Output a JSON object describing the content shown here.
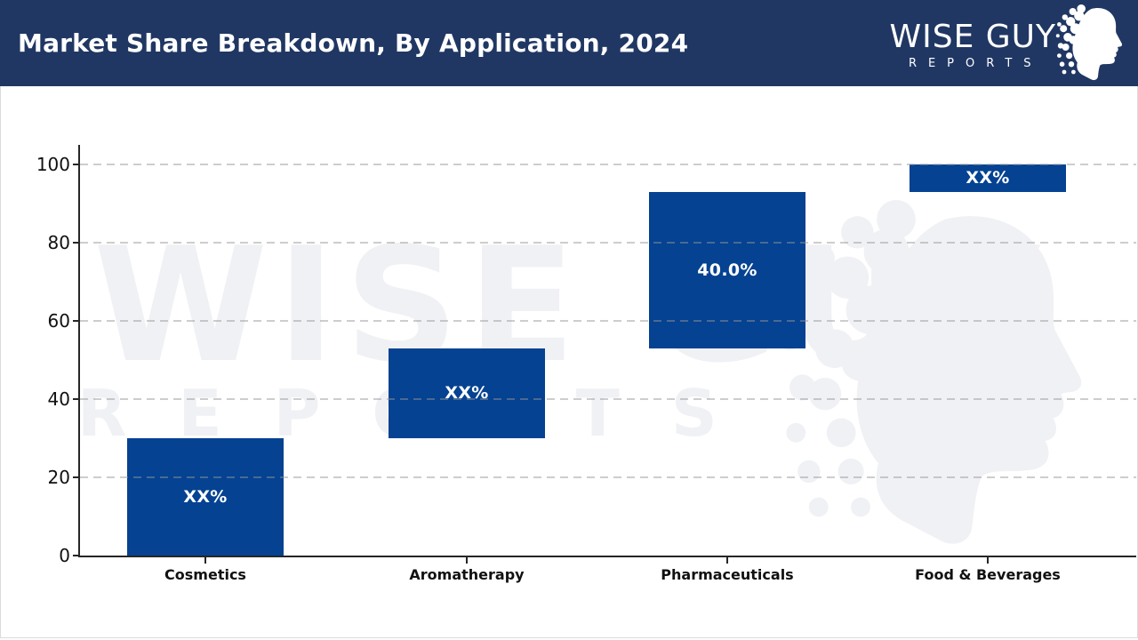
{
  "header": {
    "title": "Market Share Breakdown, By Application, 2024",
    "logo_line1": "WISE GUY",
    "logo_line2": "REPORTS"
  },
  "watermark": {
    "line1": "WISE GUY",
    "line2": "REPORTS"
  },
  "colors": {
    "header_bg": "#203763",
    "bar": "#054291",
    "axis": "#262626",
    "tick_text": "#111111",
    "bar_label_text": "#ffffff",
    "watermark": "#f0f1f4",
    "panel_border": "#dcdcdc"
  },
  "chart_data": {
    "type": "bar",
    "subtype": "waterfall",
    "title": "Market Share Breakdown, By Application, 2024",
    "categories": [
      "Cosmetics",
      "Aromatherapy",
      "Pharmaceuticals",
      "Food & Beverages"
    ],
    "segments": [
      {
        "category": "Cosmetics",
        "start": 0,
        "end": 30,
        "label": "XX%"
      },
      {
        "category": "Aromatherapy",
        "start": 30,
        "end": 53,
        "label": "XX%"
      },
      {
        "category": "Pharmaceuticals",
        "start": 53,
        "end": 93,
        "label": "40.0%"
      },
      {
        "category": "Food & Beverages",
        "start": 93,
        "end": 100,
        "label": "XX%"
      }
    ],
    "xlabel": "",
    "ylabel": "",
    "yticks": [
      0,
      20,
      40,
      60,
      80,
      100
    ],
    "ylim": [
      0,
      105
    ],
    "legend": false,
    "grid": "horizontal-dashed-over-bars"
  }
}
